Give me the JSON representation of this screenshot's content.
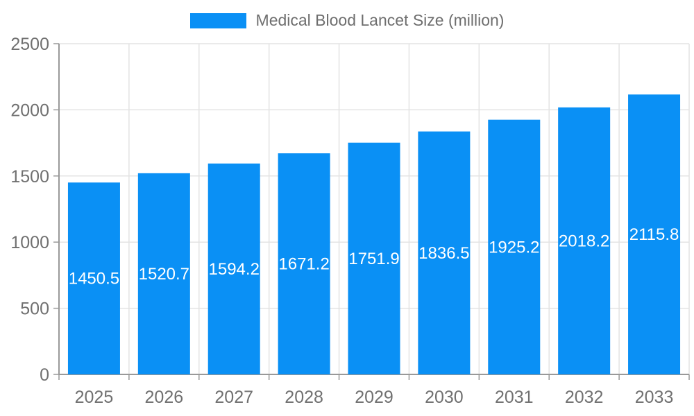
{
  "legend": {
    "label": "Medical Blood Lancet Size (million)"
  },
  "chart_data": {
    "type": "bar",
    "title": "Medical Blood Lancet Size (million)",
    "series_name": "Medical Blood Lancet Size (million)",
    "categories": [
      "2025",
      "2026",
      "2027",
      "2028",
      "2029",
      "2030",
      "2031",
      "2032",
      "2033"
    ],
    "values": [
      1450.5,
      1520.7,
      1594.2,
      1671.2,
      1751.9,
      1836.5,
      1925.2,
      2018.2,
      2115.8
    ],
    "value_labels": [
      "1450.5",
      "1520.7",
      "1594.2",
      "1671.2",
      "1751.9",
      "1836.5",
      "1925.2",
      "2018.2",
      "2115.8"
    ],
    "xlabel": "",
    "ylabel": "",
    "ylim": [
      0,
      2500
    ],
    "yticks": [
      0,
      500,
      1000,
      1500,
      2000,
      2500
    ],
    "ytick_labels": [
      "0",
      "500",
      "1000",
      "1500",
      "2000",
      "2500"
    ],
    "grid": true,
    "legend_position": "top",
    "colors": {
      "bar": "#0a90f5",
      "value_label": "#ffffff",
      "axis_line": "#999999",
      "gridline": "#e3e3e3",
      "tick_label": "#707070",
      "background": "#ffffff"
    }
  }
}
